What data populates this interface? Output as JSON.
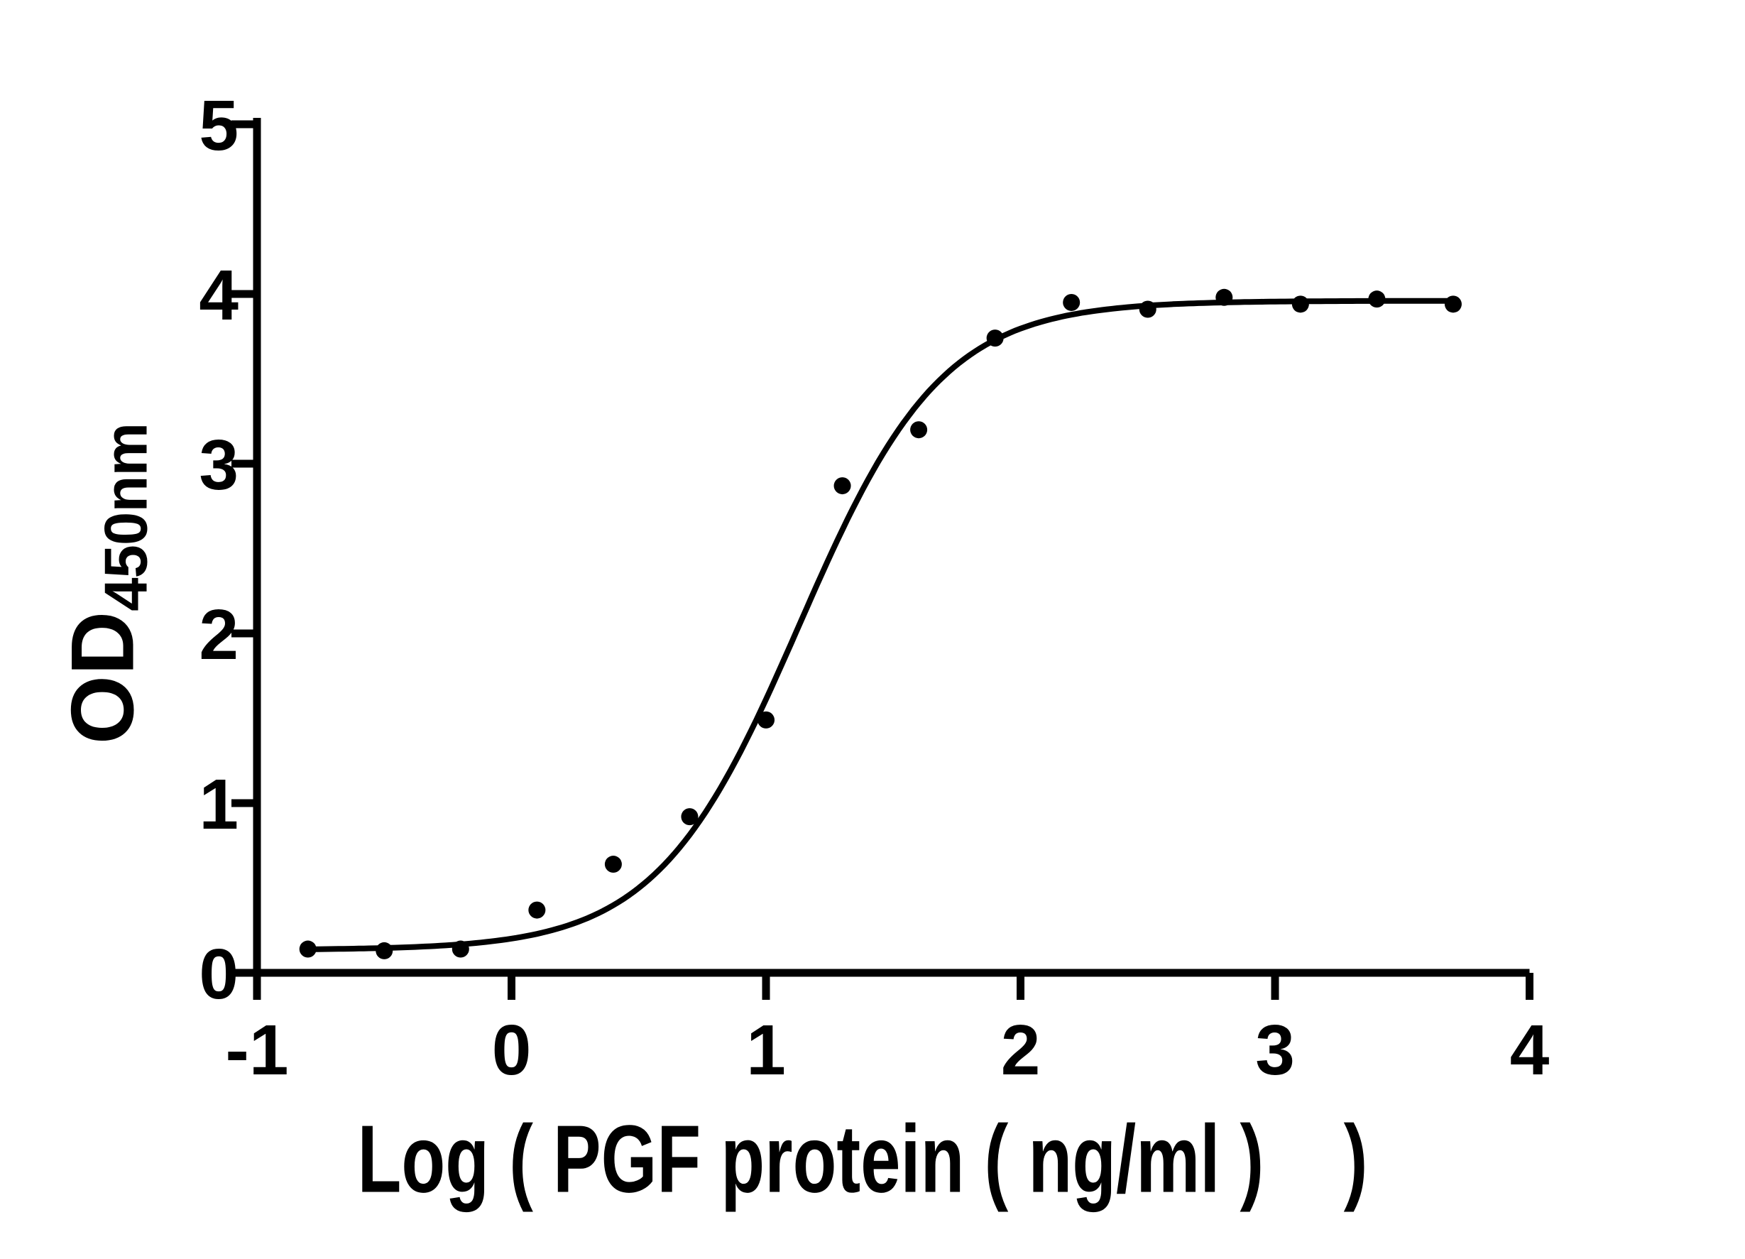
{
  "figure": {
    "background": "#ffffff",
    "foreground": "#000000"
  },
  "chart_data": {
    "type": "scatter",
    "title": "",
    "xlabel": "Log ( PGF protein ( ng/ml )    )",
    "ylabel_main": "OD",
    "ylabel_sub": "450nm",
    "x": [
      -0.8,
      -0.5,
      -0.2,
      0.1,
      0.4,
      0.7,
      1.0,
      1.3,
      1.6,
      1.9,
      2.2,
      2.5,
      2.8,
      3.1,
      3.4,
      3.7
    ],
    "y": [
      0.14,
      0.13,
      0.14,
      0.37,
      0.64,
      0.92,
      1.49,
      2.87,
      3.2,
      3.74,
      3.95,
      3.91,
      3.98,
      3.94,
      3.97,
      3.94
    ],
    "x_ticks": [
      "-1",
      "0",
      "1",
      "2",
      "3",
      "4"
    ],
    "x_tick_values": [
      -1,
      0,
      1,
      2,
      3,
      4
    ],
    "y_ticks": [
      "0",
      "1",
      "2",
      "3",
      "4",
      "5"
    ],
    "y_tick_values": [
      0,
      1,
      2,
      3,
      4,
      5
    ],
    "xlim": [
      -1,
      4
    ],
    "ylim": [
      0,
      5
    ],
    "grid": false,
    "legend": "none",
    "marker_color": "#000000",
    "line_color": "#000000",
    "fit_curve": {
      "model": "4PL",
      "bottom": 0.135,
      "top": 3.96,
      "logEC50": 1.13,
      "hill": 1.55,
      "x_start": -0.8,
      "x_end": 3.7
    }
  }
}
